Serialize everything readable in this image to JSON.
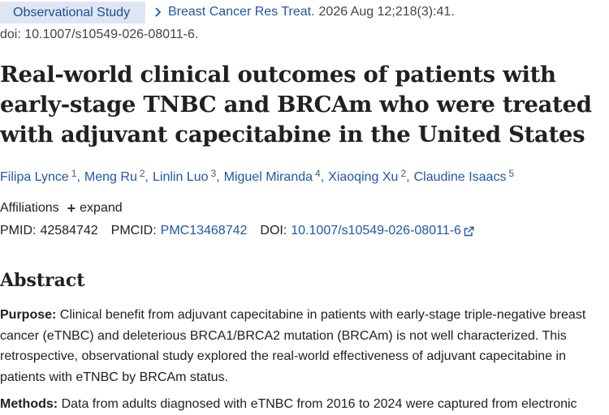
{
  "header": {
    "article_type": "Observational Study",
    "journal": "Breast Cancer Res Treat.",
    "citation": "2026 Aug 12;218(3):41.",
    "doi_line": "doi: 10.1007/s10549-026-08011-6."
  },
  "title": "Real-world clinical outcomes of patients with early-stage TNBC and BRCAm who were treated with adjuvant capecitabine in the United States",
  "authors": [
    {
      "name": "Filipa Lynce",
      "sup": "1"
    },
    {
      "name": "Meng Ru",
      "sup": "2"
    },
    {
      "name": "Linlin Luo",
      "sup": "3"
    },
    {
      "name": "Miguel Miranda",
      "sup": "4"
    },
    {
      "name": "Xiaoqing Xu",
      "sup": "2"
    },
    {
      "name": "Claudine Isaacs",
      "sup": "5"
    }
  ],
  "affiliations": {
    "label": "Affiliations",
    "expand_label": "expand"
  },
  "identifiers": {
    "pmid_label": "PMID:",
    "pmid": "42584742",
    "pmcid_label": "PMCID:",
    "pmcid": "PMC13468742",
    "doi_label": "DOI:",
    "doi": "10.1007/s10549-026-08011-6"
  },
  "abstract": {
    "heading": "Abstract",
    "purpose_label": "Purpose:",
    "purpose_text": "Clinical benefit from adjuvant capecitabine in patients with early-stage triple-negative breast cancer (eTNBC) and deleterious BRCA1/BRCA2 mutation (BRCAm) is not well characterized. This retrospective, observational study explored the real-world effectiveness of adjuvant capecitabine in patients with eTNBC by BRCAm status.",
    "methods_label": "Methods:",
    "methods_text": "Data from adults diagnosed with eTNBC from 2016 to 2024 were captured from electronic"
  },
  "colors": {
    "link": "#2057a8",
    "badge_bg": "#dfe6f3",
    "badge_text": "#1b4f91",
    "text": "#212121"
  }
}
